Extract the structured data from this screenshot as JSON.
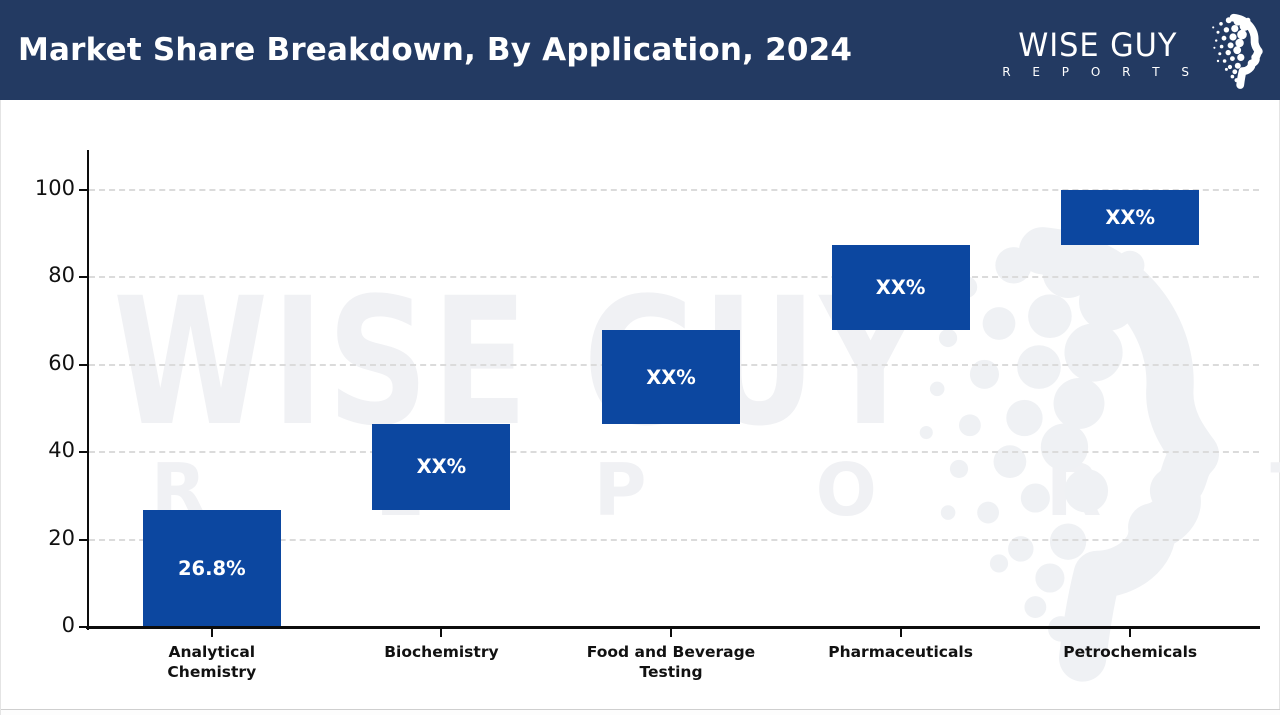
{
  "header": {
    "title": "Market Share Breakdown, By Application, 2024",
    "bg_color": "#233a62",
    "logo": {
      "line1": "WISE GUY",
      "line2": "R E P O R T S"
    }
  },
  "watermark": {
    "line1": "WISE GUY",
    "line2": "R E P O R T S"
  },
  "chart_data": {
    "type": "bar",
    "subtype": "waterfall",
    "title": "Market Share Breakdown, By Application, 2024",
    "xlabel": "",
    "ylabel": "",
    "categories": [
      "Analytical Chemistry",
      "Biochemistry",
      "Food and Beverage Testing",
      "Pharmaceuticals",
      "Petrochemicals"
    ],
    "series": [
      {
        "name": "Market Share",
        "segments": [
          {
            "category": "Analytical Chemistry",
            "start": 0,
            "end": 26.8,
            "label": "26.8%"
          },
          {
            "category": "Biochemistry",
            "start": 26.8,
            "end": 46.4,
            "label": "XX%"
          },
          {
            "category": "Food and Beverage Testing",
            "start": 46.4,
            "end": 67.9,
            "label": "XX%"
          },
          {
            "category": "Pharmaceuticals",
            "start": 67.9,
            "end": 87.3,
            "label": "XX%"
          },
          {
            "category": "Petrochemicals",
            "start": 87.3,
            "end": 100,
            "label": "XX%"
          }
        ]
      }
    ],
    "yticks": [
      0,
      20,
      40,
      60,
      80,
      100
    ],
    "ylim": [
      0,
      107
    ],
    "grid": "horizontal-dashed",
    "legend": "none",
    "bar_color": "#0c47a0",
    "bar_label_color": "#ffffff"
  }
}
